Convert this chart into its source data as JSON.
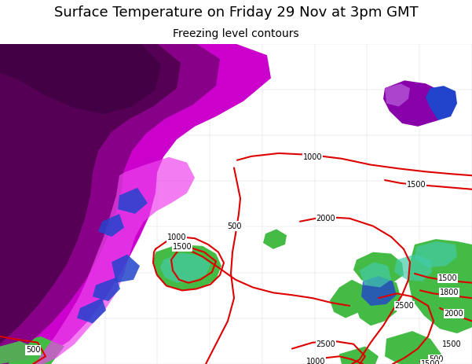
{
  "title": "Surface Temperature on Friday 29 Nov at 3pm GMT",
  "subtitle": "Freezing level contours",
  "title_fontsize": 13,
  "subtitle_fontsize": 10,
  "ocean_color": "#c8cce8",
  "contour_color": "#dd0000",
  "contour_linewidth": 1.5,
  "contour_label_fontsize": 7,
  "fig_width": 6.01,
  "fig_height": 4.63,
  "dpi": 100,
  "header_bg": "#ffffff",
  "grid_color": "#aaaacc",
  "grid_alpha": 0.5,
  "grid_lw": 0.3,
  "greenland_deep_color": "#550055",
  "greenland_mid_color": "#880088",
  "greenland_outer_color": "#cc00cc",
  "greenland_fringe_color": "#ee44ee",
  "land_green_color": "#44bb44",
  "land_teal_color": "#44ccaa",
  "land_blue_color": "#2244cc"
}
